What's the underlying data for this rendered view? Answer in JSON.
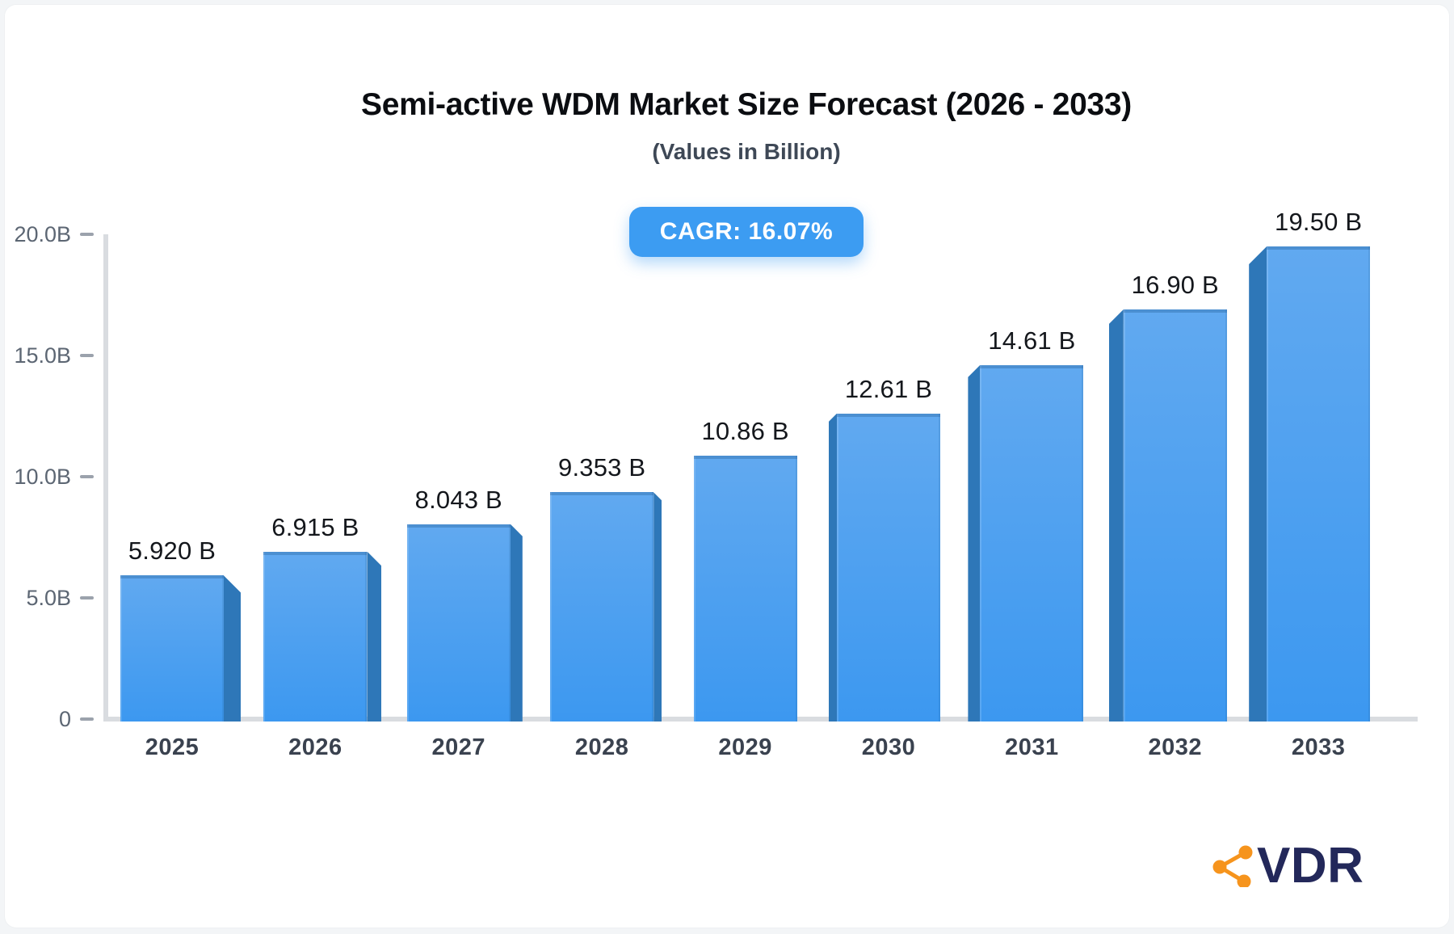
{
  "page": {
    "background_color": "#f3f5f7",
    "card_background_color": "#ffffff"
  },
  "chart_data": {
    "type": "bar",
    "title": "Semi-active WDM Market Size Forecast (2026 - 2033)",
    "subtitle": "(Values in Billion)",
    "annotation": "CAGR: 16.07%",
    "categories": [
      "2025",
      "2026",
      "2027",
      "2028",
      "2029",
      "2030",
      "2031",
      "2032",
      "2033"
    ],
    "values": [
      5.92,
      6.915,
      8.043,
      9.353,
      10.86,
      12.61,
      14.61,
      16.9,
      19.5
    ],
    "value_labels": [
      "5.920 B",
      "6.915 B",
      "8.043 B",
      "9.353 B",
      "10.86 B",
      "12.61 B",
      "14.61 B",
      "16.90 B",
      "19.50 B"
    ],
    "xlabel": "",
    "ylabel": "",
    "ylim": [
      0,
      20
    ],
    "yticks": [
      {
        "value": 20,
        "label": "20.0B"
      },
      {
        "value": 15,
        "label": "15.0B"
      },
      {
        "value": 10,
        "label": "10.0B"
      },
      {
        "value": 5,
        "label": "5.0B"
      },
      {
        "value": 0,
        "label": "0"
      }
    ],
    "grid": false,
    "legend": false,
    "colors": {
      "bar_top": "#61a9f0",
      "bar_bottom": "#3c98f0",
      "bar_side": "#2e77b8",
      "badge_background": "#3c9cf2",
      "axis": "#d9dce0",
      "tick": "#9ba2ac"
    }
  },
  "logo": {
    "text": "VDR",
    "icon": "share-icon",
    "icon_color": "#F6941D",
    "text_color": "#23285a"
  }
}
